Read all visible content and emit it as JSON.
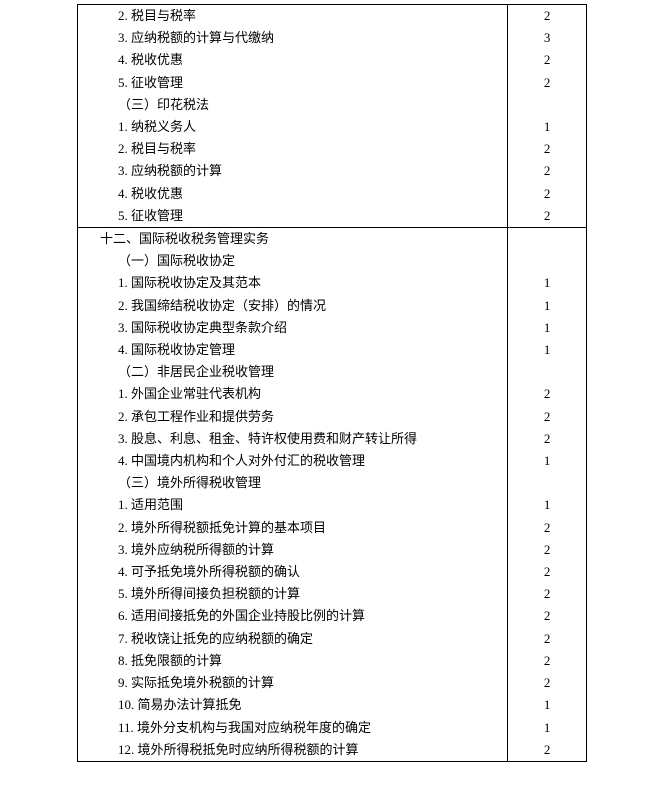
{
  "font_family": "SimSun",
  "font_size_pt": 10,
  "text_color": "#000000",
  "border_color": "#000000",
  "background_color": "#ffffff",
  "rows": [
    {
      "label": "2. 税目与税率",
      "value": "2",
      "indent": 3,
      "divider": false
    },
    {
      "label": "3. 应纳税额的计算与代缴纳",
      "value": "3",
      "indent": 3,
      "divider": false
    },
    {
      "label": "4. 税收优惠",
      "value": "2",
      "indent": 3,
      "divider": false
    },
    {
      "label": "5. 征收管理",
      "value": "2",
      "indent": 3,
      "divider": false
    },
    {
      "label": "（三）印花税法",
      "value": "",
      "indent": 2,
      "divider": false
    },
    {
      "label": "1. 纳税义务人",
      "value": "1",
      "indent": 3,
      "divider": false
    },
    {
      "label": "2. 税目与税率",
      "value": "2",
      "indent": 3,
      "divider": false
    },
    {
      "label": "3. 应纳税额的计算",
      "value": "2",
      "indent": 3,
      "divider": false
    },
    {
      "label": "4. 税收优惠",
      "value": "2",
      "indent": 3,
      "divider": false
    },
    {
      "label": "5. 征收管理",
      "value": "2",
      "indent": 3,
      "divider": false
    },
    {
      "label": "十二、国际税收税务管理实务",
      "value": "",
      "indent": 1,
      "divider": true
    },
    {
      "label": "（一）国际税收协定",
      "value": "",
      "indent": 2,
      "divider": false
    },
    {
      "label": "1. 国际税收协定及其范本",
      "value": "1",
      "indent": 3,
      "divider": false
    },
    {
      "label": "2. 我国缔结税收协定（安排）的情况",
      "value": "1",
      "indent": 3,
      "divider": false
    },
    {
      "label": "3. 国际税收协定典型条款介绍",
      "value": "1",
      "indent": 3,
      "divider": false
    },
    {
      "label": "4. 国际税收协定管理",
      "value": "1",
      "indent": 3,
      "divider": false
    },
    {
      "label": "（二）非居民企业税收管理",
      "value": "",
      "indent": 2,
      "divider": false
    },
    {
      "label": "1. 外国企业常驻代表机构",
      "value": "2",
      "indent": 3,
      "divider": false
    },
    {
      "label": "2. 承包工程作业和提供劳务",
      "value": "2",
      "indent": 3,
      "divider": false
    },
    {
      "label": "3. 股息、利息、租金、特许权使用费和财产转让所得",
      "value": "2",
      "indent": 3,
      "divider": false
    },
    {
      "label": "4. 中国境内机构和个人对外付汇的税收管理",
      "value": "1",
      "indent": 3,
      "divider": false
    },
    {
      "label": "（三）境外所得税收管理",
      "value": "",
      "indent": 2,
      "divider": false
    },
    {
      "label": "1. 适用范围",
      "value": "1",
      "indent": 3,
      "divider": false
    },
    {
      "label": "2. 境外所得税额抵免计算的基本项目",
      "value": "2",
      "indent": 3,
      "divider": false
    },
    {
      "label": "3. 境外应纳税所得额的计算",
      "value": "2",
      "indent": 3,
      "divider": false
    },
    {
      "label": "4. 可予抵免境外所得税额的确认",
      "value": "2",
      "indent": 3,
      "divider": false
    },
    {
      "label": "5. 境外所得间接负担税额的计算",
      "value": "2",
      "indent": 3,
      "divider": false
    },
    {
      "label": "6. 适用间接抵免的外国企业持股比例的计算",
      "value": "2",
      "indent": 3,
      "divider": false
    },
    {
      "label": "7. 税收饶让抵免的应纳税额的确定",
      "value": "2",
      "indent": 3,
      "divider": false
    },
    {
      "label": "8. 抵免限额的计算",
      "value": "2",
      "indent": 3,
      "divider": false
    },
    {
      "label": "9. 实际抵免境外税额的计算",
      "value": "2",
      "indent": 3,
      "divider": false
    },
    {
      "label": "10. 简易办法计算抵免",
      "value": "1",
      "indent": 3,
      "divider": false
    },
    {
      "label": "11. 境外分支机构与我国对应纳税年度的确定",
      "value": "1",
      "indent": 3,
      "divider": false
    },
    {
      "label": "12. 境外所得税抵免时应纳所得税额的计算",
      "value": "2",
      "indent": 3,
      "divider": false
    }
  ]
}
